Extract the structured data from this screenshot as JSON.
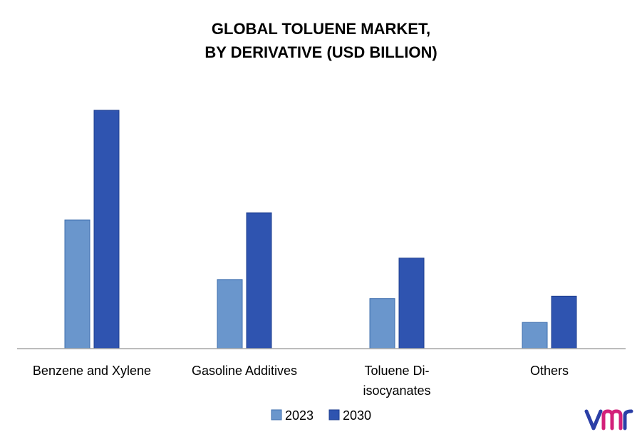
{
  "chart_data": {
    "type": "bar",
    "title_lines": [
      "GLOBAL TOLUENE MARKET,",
      "BY DERIVATIVE (USD BILLION)"
    ],
    "categories": [
      [
        "Benzene and Xylene"
      ],
      [
        "Gasoline Additives"
      ],
      [
        "Toluene Di-",
        "isocyanates"
      ],
      [
        "Others"
      ]
    ],
    "series": [
      {
        "name": "2023",
        "color": "#6a96cc",
        "stroke": "#3f6fae",
        "values": [
          5.4,
          2.9,
          2.1,
          1.1
        ]
      },
      {
        "name": "2030",
        "color": "#2f54b0",
        "stroke": "#1f3f8f",
        "values": [
          10.0,
          5.7,
          3.8,
          2.2
        ]
      }
    ],
    "ylim": [
      0,
      10.0
    ],
    "grid": false,
    "legend_position": "bottom-center"
  },
  "logo_icon": "vmr-logo-icon"
}
